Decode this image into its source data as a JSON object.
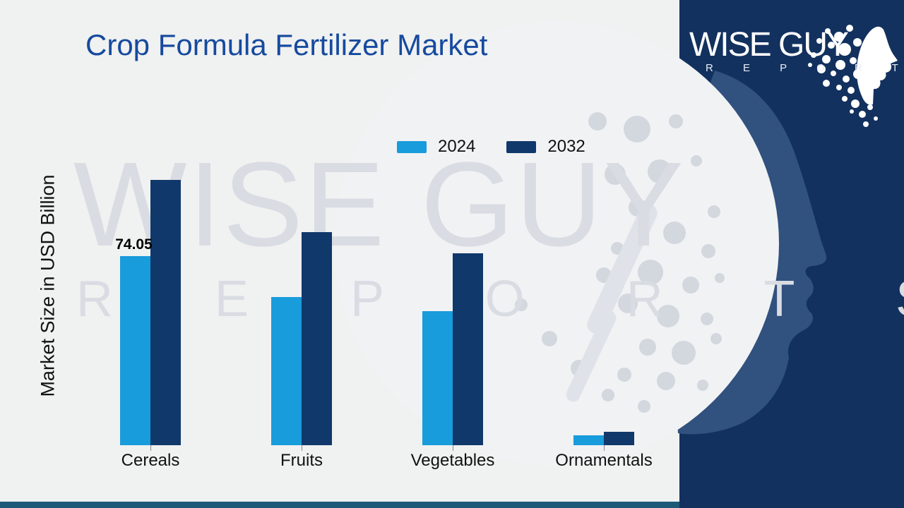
{
  "page": {
    "title": "Crop Formula Fertilizer Market"
  },
  "branding": {
    "name_line": "WISE GUY",
    "reports_line": "R E P O R T S"
  },
  "watermark": {
    "name_line": "WISE GUY",
    "reports_line": "R E P O R T S"
  },
  "chart_data": {
    "type": "bar",
    "title": "Crop Formula Fertilizer Market",
    "xlabel": "",
    "ylabel": "Market Size in USD Billion",
    "categories": [
      "Cereals",
      "Fruits",
      "Vegetables",
      "Ornamentals"
    ],
    "series": [
      {
        "name": "2024",
        "color": "#189cdb",
        "values": [
          74.05,
          58.0,
          52.5,
          3.9
        ]
      },
      {
        "name": "2032",
        "color": "#10386b",
        "values": [
          103.9,
          83.4,
          75.2,
          5.3
        ]
      }
    ],
    "annotations": [
      {
        "series": "2024",
        "category": "Cereals",
        "text": "74.05"
      }
    ],
    "ylim": [
      0,
      110
    ],
    "grid": false,
    "axis_line": false,
    "legend_position": "top-center"
  },
  "colors": {
    "background": "#f0f1f1",
    "bar_2024": "#189cdb",
    "bar_2032": "#10386b",
    "brand_panel_navy": "#12315e",
    "title_blue": "#164a9e",
    "bottom_strip_teal": "#1e5a78",
    "watermark_gray": "#d9dce2"
  }
}
